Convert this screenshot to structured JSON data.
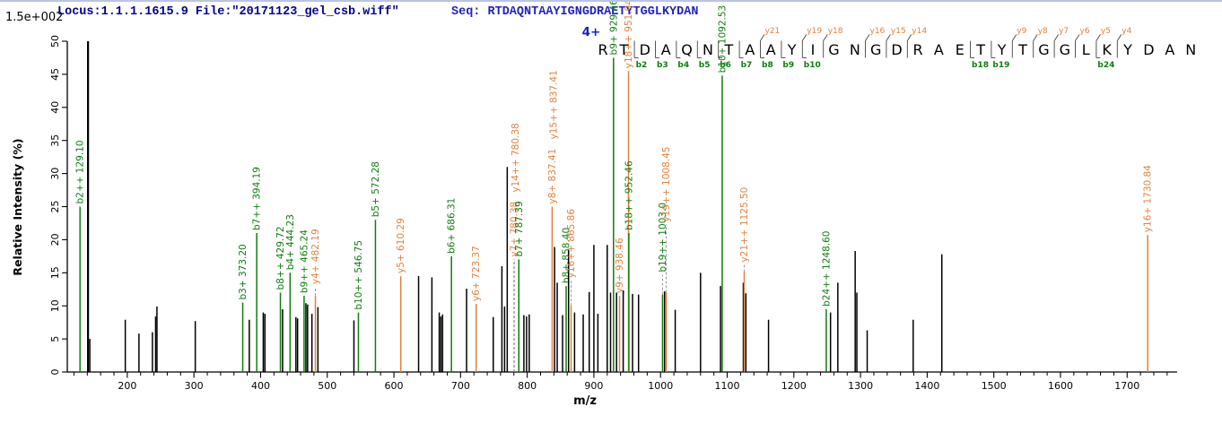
{
  "header": {
    "locus_file": "Locus:1.1.1.1615.9 File:\"20171123_gel_csb.wiff\"",
    "seq": "Seq: RTDAQNTAAYIGNGDRAETYTGGLKYDAN",
    "scale_note": "1.5e+002"
  },
  "sequence_panel": {
    "charge": "4+",
    "residues": "RTDAQNTAAYIGNGDRAETYTGGLKYDAN",
    "y_labels": [
      {
        "text": "y21",
        "gap": 8
      },
      {
        "text": "y19",
        "gap": 10
      },
      {
        "text": "y18",
        "gap": 11
      },
      {
        "text": "y16",
        "gap": 13
      },
      {
        "text": "y15",
        "gap": 14
      },
      {
        "text": "y14",
        "gap": 15
      },
      {
        "text": "y9",
        "gap": 20
      },
      {
        "text": "y8",
        "gap": 21
      },
      {
        "text": "y7",
        "gap": 22
      },
      {
        "text": "y6",
        "gap": 23
      },
      {
        "text": "y5",
        "gap": 24
      },
      {
        "text": "y4",
        "gap": 25
      }
    ],
    "b_labels": [
      {
        "text": "b2",
        "gap": 2
      },
      {
        "text": "b3",
        "gap": 3
      },
      {
        "text": "b4",
        "gap": 4
      },
      {
        "text": "b5",
        "gap": 5
      },
      {
        "text": "b6",
        "gap": 6
      },
      {
        "text": "b7",
        "gap": 7
      },
      {
        "text": "b8",
        "gap": 8
      },
      {
        "text": "b9",
        "gap": 9
      },
      {
        "text": "b10",
        "gap": 10
      },
      {
        "text": "b18",
        "gap": 18
      },
      {
        "text": "b19",
        "gap": 19
      },
      {
        "text": "b24",
        "gap": 24
      }
    ]
  },
  "chart_data": {
    "type": "bar",
    "kind": "ms2_fragment_spectrum",
    "title": "",
    "xlabel": "m/z",
    "ylabel": "Relative  Intensity (%)",
    "xlim": [
      110,
      1775
    ],
    "ylim": [
      0,
      50
    ],
    "y_ticks": [
      0,
      5,
      10,
      15,
      20,
      25,
      30,
      35,
      40,
      45,
      50
    ],
    "x_major_ticks": [
      200,
      300,
      400,
      500,
      600,
      700,
      800,
      900,
      1000,
      1100,
      1200,
      1300,
      1400,
      1500,
      1600,
      1700
    ],
    "x_minor_tick_step": 20,
    "scale_annotation": "1.5e+002",
    "peaks": [
      {
        "mz": 129.1,
        "pct": 25,
        "ion": "b",
        "label": "b2++ 129.10"
      },
      {
        "mz": 141.1,
        "pct": 50,
        "w": 2.2
      },
      {
        "mz": 143.8,
        "pct": 5
      },
      {
        "mz": 197,
        "pct": 7.9
      },
      {
        "mz": 217.5,
        "pct": 5.8
      },
      {
        "mz": 237.7,
        "pct": 6
      },
      {
        "mz": 242.5,
        "pct": 8.4
      },
      {
        "mz": 244.5,
        "pct": 9.9
      },
      {
        "mz": 302,
        "pct": 7.7
      },
      {
        "mz": 373.2,
        "pct": 10.5,
        "ion": "b",
        "label": "b3+ 373.20"
      },
      {
        "mz": 383,
        "pct": 7.9
      },
      {
        "mz": 394.19,
        "pct": 21,
        "ion": "b",
        "label": "b7++ 394.19"
      },
      {
        "mz": 404,
        "pct": 9
      },
      {
        "mz": 406.5,
        "pct": 8.8
      },
      {
        "mz": 429.72,
        "pct": 12,
        "ion": "b",
        "label": "b8++ 429.72"
      },
      {
        "mz": 433,
        "pct": 9.5
      },
      {
        "mz": 444.23,
        "pct": 15,
        "ion": "b",
        "label": "b4+ 444.23"
      },
      {
        "mz": 453,
        "pct": 8.3
      },
      {
        "mz": 455.5,
        "pct": 8.1
      },
      {
        "mz": 465.24,
        "pct": 11.5,
        "ion": "b",
        "label": "b9++ 465.24"
      },
      {
        "mz": 468,
        "pct": 10.4
      },
      {
        "mz": 470.5,
        "pct": 10.2
      },
      {
        "mz": 477,
        "pct": 8.8
      },
      {
        "mz": 482.19,
        "pct": 11.5,
        "ion": "y",
        "label": "y4+ 482.19",
        "leader": 10
      },
      {
        "mz": 486,
        "pct": 9.8
      },
      {
        "mz": 540,
        "pct": 7.8
      },
      {
        "mz": 546.75,
        "pct": 9,
        "ion": "b",
        "label": "b10++ 546.75"
      },
      {
        "mz": 572.28,
        "pct": 23,
        "ion": "b",
        "label": "b5+ 572.28"
      },
      {
        "mz": 610.29,
        "pct": 14.5,
        "ion": "y",
        "label": "y5+ 610.29"
      },
      {
        "mz": 637,
        "pct": 14.5
      },
      {
        "mz": 657,
        "pct": 14.3
      },
      {
        "mz": 668,
        "pct": 9
      },
      {
        "mz": 670.5,
        "pct": 8.4
      },
      {
        "mz": 673,
        "pct": 8.7
      },
      {
        "mz": 686.31,
        "pct": 17.5,
        "ion": "b",
        "label": "b6+ 686.31"
      },
      {
        "mz": 709,
        "pct": 12.6
      },
      {
        "mz": 723.37,
        "pct": 10.3,
        "ion": "y",
        "label": "y6+ 723.37"
      },
      {
        "mz": 749,
        "pct": 8.3
      },
      {
        "mz": 762,
        "pct": 16
      },
      {
        "mz": 766,
        "pct": 9.9
      },
      {
        "mz": 770,
        "pct": 31
      },
      {
        "mz": 780.38,
        "pct": 17,
        "ion": "y",
        "label": "y7+ 780.38",
        "label2": "y14++ 780.38",
        "dashed": true
      },
      {
        "mz": 787.39,
        "pct": 17,
        "ion": "b",
        "label": "b7+ 787.39"
      },
      {
        "mz": 795,
        "pct": 8.6
      },
      {
        "mz": 799,
        "pct": 8.4
      },
      {
        "mz": 803,
        "pct": 8.7
      },
      {
        "mz": 837.41,
        "pct": 25,
        "ion": "y",
        "label": "y8+ 837.41",
        "label2": "y15++ 837.41"
      },
      {
        "mz": 841,
        "pct": 18.9
      },
      {
        "mz": 845,
        "pct": 13.5
      },
      {
        "mz": 853,
        "pct": 8.6
      },
      {
        "mz": 858.4,
        "pct": 13,
        "ion": "b",
        "label": "b8+ 858.40"
      },
      {
        "mz": 862,
        "pct": 18.5
      },
      {
        "mz": 865.86,
        "pct": 10,
        "ion": "y",
        "label": "y16++ 865.86",
        "leader": 28
      },
      {
        "mz": 871,
        "pct": 9
      },
      {
        "mz": 884,
        "pct": 8.7
      },
      {
        "mz": 893,
        "pct": 12.1
      },
      {
        "mz": 900,
        "pct": 19.2
      },
      {
        "mz": 906,
        "pct": 8.8
      },
      {
        "mz": 920,
        "pct": 19.2
      },
      {
        "mz": 925,
        "pct": 12
      },
      {
        "mz": 929.46,
        "pct": 47.5,
        "ion": "b",
        "label": "b9+ 929.46"
      },
      {
        "mz": 934,
        "pct": 12
      },
      {
        "mz": 938.46,
        "pct": 11.5,
        "ion": "y",
        "label": "y9+ 938.46"
      },
      {
        "mz": 944,
        "pct": 12.3
      },
      {
        "mz": 951.94,
        "pct": 45.5,
        "ion": "y",
        "label": "y18++ 951.94"
      },
      {
        "mz": 952.46,
        "pct": 21,
        "ion": "b",
        "label": "b18++ 952.46"
      },
      {
        "mz": 958,
        "pct": 11.8
      },
      {
        "mz": 967,
        "pct": 11.7
      },
      {
        "mz": 1003.0,
        "pct": 11.7,
        "ion": "b",
        "label": "b19++ 1003.0",
        "leader": 22
      },
      {
        "mz": 1006,
        "pct": 12.2
      },
      {
        "mz": 1008.45,
        "pct": 12,
        "ion": "y",
        "label": "y19++ 1008.45",
        "leader": 76
      },
      {
        "mz": 1022,
        "pct": 9.4
      },
      {
        "mz": 1060,
        "pct": 15
      },
      {
        "mz": 1090,
        "pct": 13
      },
      {
        "mz": 1092.53,
        "pct": 44.8,
        "ion": "b",
        "label": "b10+ 1092.53"
      },
      {
        "mz": 1124.2,
        "pct": 13.5
      },
      {
        "mz": 1125.5,
        "pct": 15.1,
        "ion": "y",
        "label": "y21++ 1125.50",
        "leader": 8
      },
      {
        "mz": 1128,
        "pct": 11.9
      },
      {
        "mz": 1162,
        "pct": 7.9
      },
      {
        "mz": 1248.6,
        "pct": 9.5,
        "ion": "b",
        "label": "b24++ 1248.60"
      },
      {
        "mz": 1255,
        "pct": 9
      },
      {
        "mz": 1266,
        "pct": 13.5
      },
      {
        "mz": 1292,
        "pct": 18.3
      },
      {
        "mz": 1294.5,
        "pct": 12
      },
      {
        "mz": 1310,
        "pct": 6.3
      },
      {
        "mz": 1379,
        "pct": 7.9
      },
      {
        "mz": 1422,
        "pct": 17.8
      },
      {
        "mz": 1730.84,
        "pct": 20.7,
        "ion": "y",
        "label": "y16+ 1730.84"
      }
    ]
  },
  "colors": {
    "b_ion": "#0e7d0e",
    "y_ion": "#e0823e",
    "peak": "#000000",
    "dashed": "#9a9a9a",
    "header": "#00008b",
    "seq_blue": "#2222bb",
    "charge": "#1b1bd0",
    "axis": "#000000",
    "stem": "#444444"
  }
}
